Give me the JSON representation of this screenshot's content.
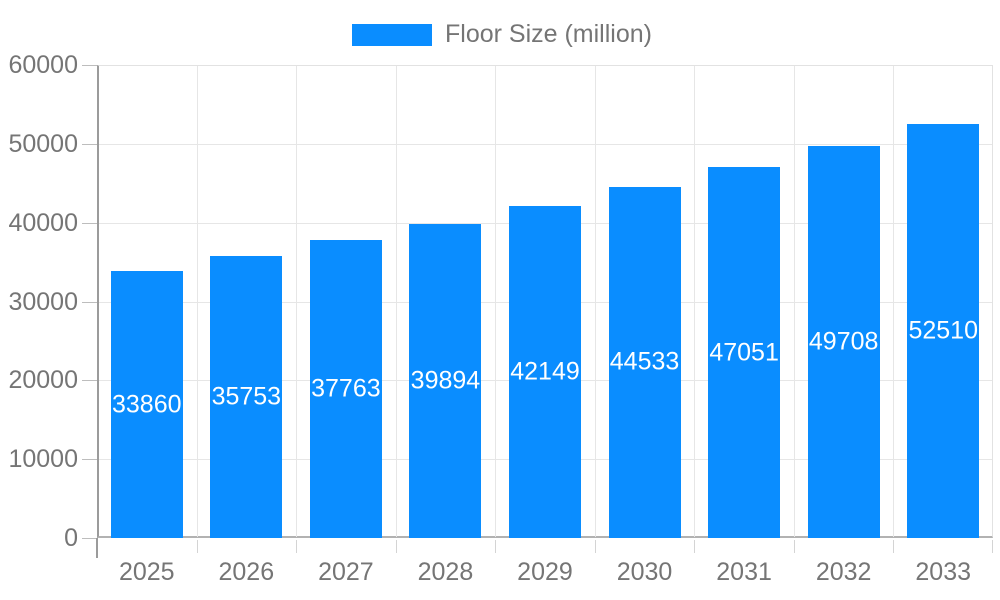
{
  "chart_data": {
    "type": "bar",
    "title": "",
    "xlabel": "",
    "ylabel": "",
    "categories": [
      "2025",
      "2026",
      "2027",
      "2028",
      "2029",
      "2030",
      "2031",
      "2032",
      "2033"
    ],
    "series": [
      {
        "name": "Floor Size (million)",
        "color": "#0a8dff",
        "values": [
          33860,
          35753,
          37763,
          39894,
          42149,
          44533,
          47051,
          49708,
          52510
        ]
      }
    ],
    "ylim": [
      0,
      60000
    ],
    "y_ticks": [
      0,
      10000,
      20000,
      30000,
      40000,
      50000,
      60000
    ],
    "grid": true,
    "legend_position": "top",
    "value_labels": "inside-center",
    "colors": {
      "bar": "#0a8dff",
      "grid": "#e6e6e6",
      "axis": "#9b9b9b",
      "tick_text": "#757575",
      "value_text": "#ffffff",
      "background": "#ffffff"
    }
  }
}
